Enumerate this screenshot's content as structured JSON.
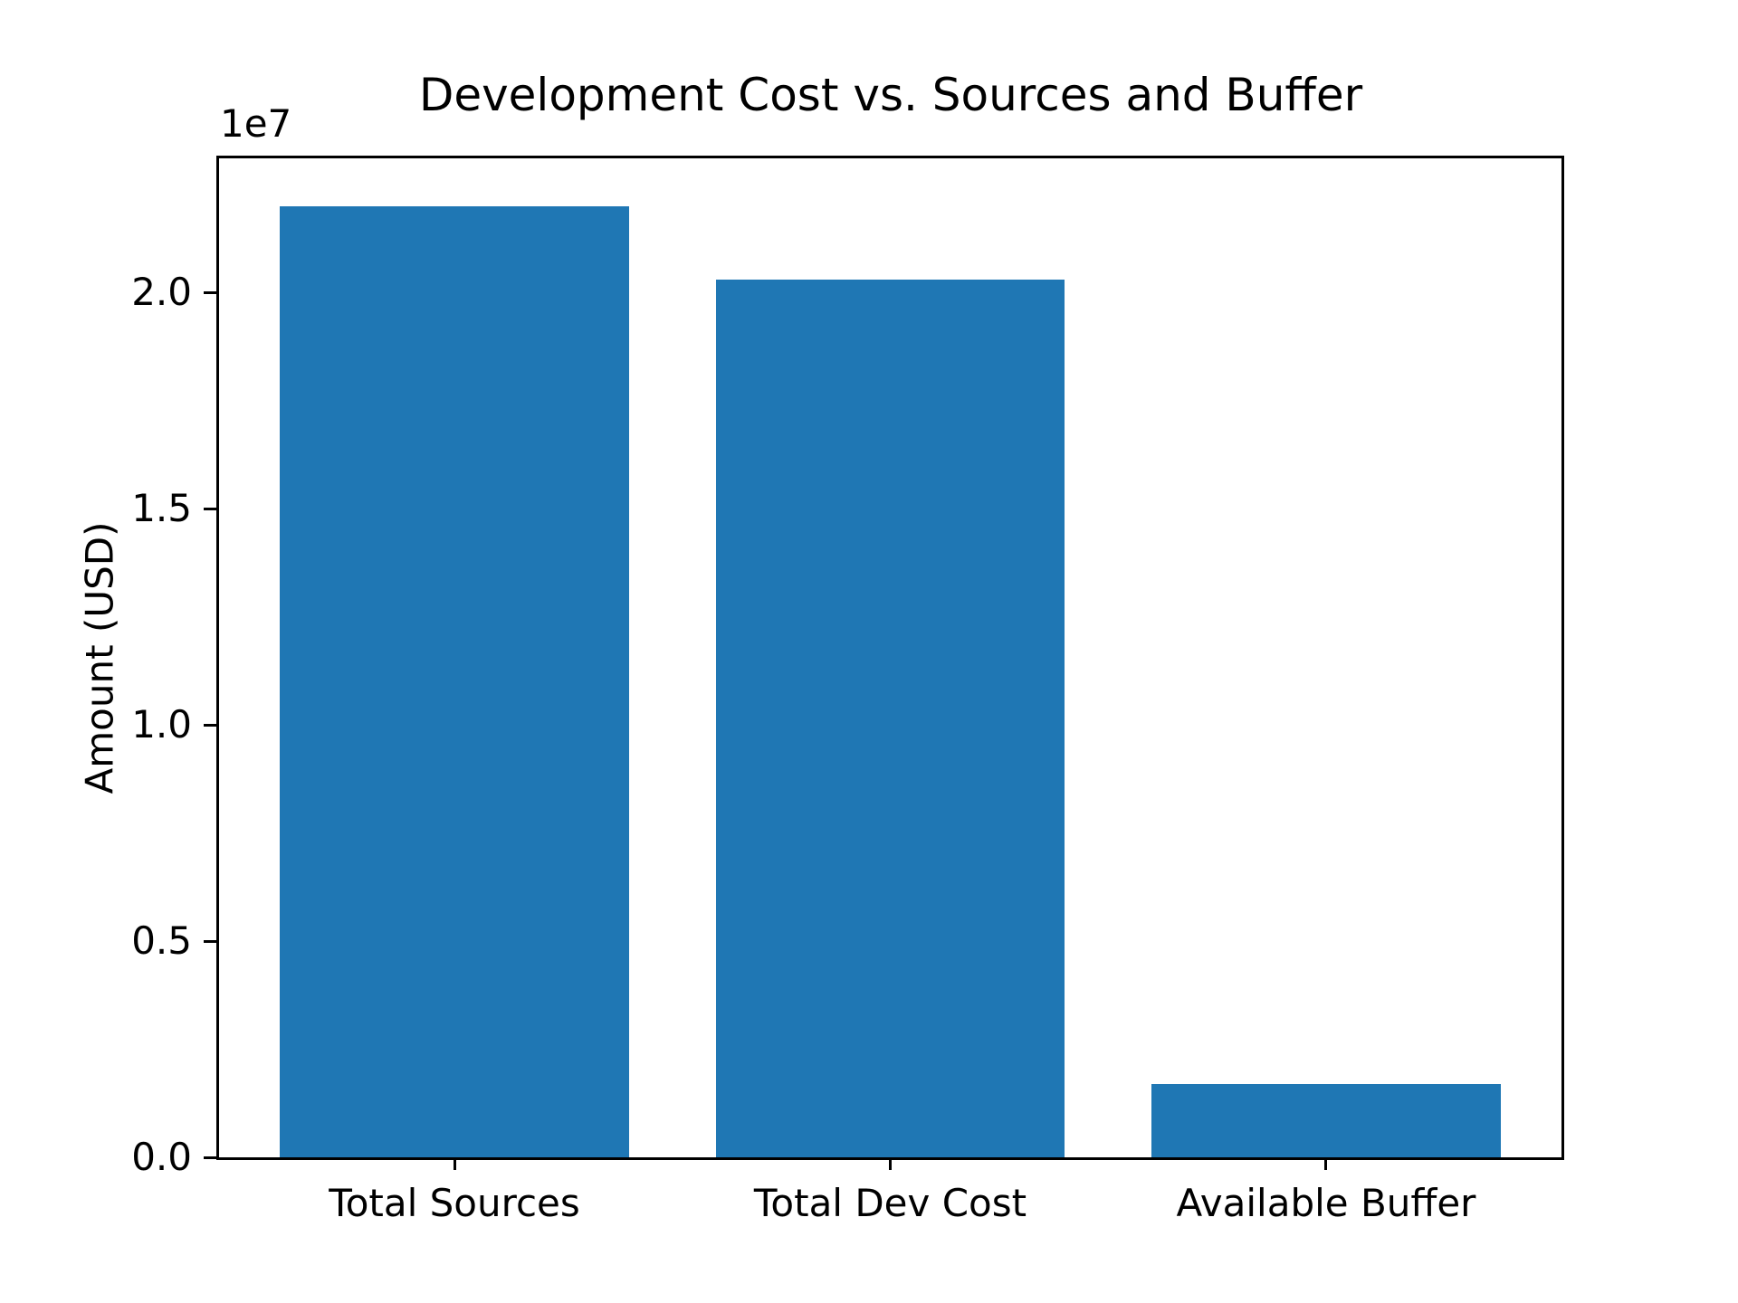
{
  "chart_data": {
    "type": "bar",
    "title": "Development Cost vs. Sources and Buffer",
    "ylabel": "Amount (USD)",
    "xlabel": "",
    "y_offset_label": "1e7",
    "categories": [
      "Total Sources",
      "Total Dev Cost",
      "Available Buffer"
    ],
    "values": [
      22000000,
      20300000,
      1700000
    ],
    "bar_color": "#1f77b4",
    "axis_color": "#000000",
    "background_color": "#ffffff",
    "ylim": [
      0,
      23100000
    ],
    "yticks": [
      {
        "value": 0,
        "label": "0.0"
      },
      {
        "value": 5000000,
        "label": "0.5"
      },
      {
        "value": 10000000,
        "label": "1.0"
      },
      {
        "value": 15000000,
        "label": "1.5"
      },
      {
        "value": 20000000,
        "label": "2.0"
      }
    ],
    "grid": false,
    "legend_position": "none",
    "bar_width_fraction": 0.8
  }
}
